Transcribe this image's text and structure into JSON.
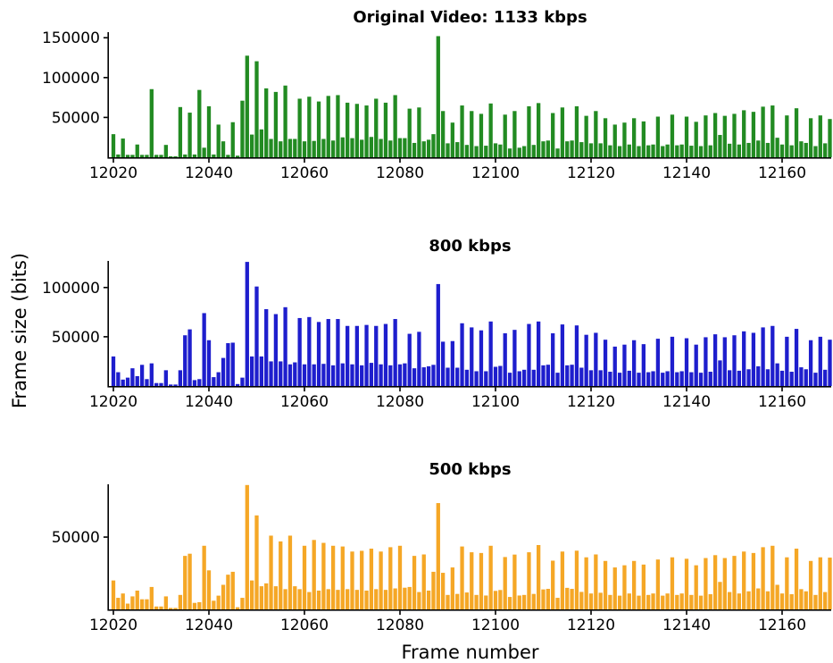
{
  "figure": {
    "xlabel": "Frame number",
    "ylabel": "Frame size (bits)",
    "background": "#ffffff",
    "text_color": "#000000"
  },
  "chart_data": [
    {
      "type": "bar",
      "title": "Original Video: 1133 kbps",
      "color": "#228B22",
      "ylim": [
        0,
        157000
      ],
      "yticks": [
        50000,
        100000,
        150000
      ],
      "xticks": [
        12020,
        12040,
        12060,
        12080,
        12100,
        12120,
        12140,
        12160
      ],
      "xlim": [
        12019,
        12170.5
      ],
      "grid": false,
      "legend": "none",
      "frame_start": 12020,
      "values": [
        29000,
        3500,
        23500,
        3000,
        3000,
        16000,
        3000,
        3000,
        85500,
        3000,
        3000,
        15500,
        1200,
        1200,
        63000,
        3500,
        56000,
        3500,
        84500,
        12000,
        64000,
        3500,
        41000,
        20000,
        3000,
        44000,
        2000,
        71000,
        127500,
        28500,
        120500,
        35000,
        86500,
        23000,
        82000,
        20000,
        90000,
        23000,
        23000,
        73500,
        20000,
        76000,
        20500,
        70000,
        23000,
        77000,
        21000,
        78000,
        25000,
        68500,
        24000,
        67000,
        22000,
        65000,
        25500,
        73500,
        23000,
        68500,
        21000,
        78000,
        24000,
        24000,
        61000,
        18000,
        62500,
        20000,
        22000,
        29000,
        152000,
        58000,
        17500,
        43500,
        19000,
        65000,
        15500,
        58000,
        14000,
        54500,
        14500,
        67500,
        17500,
        16000,
        53500,
        11000,
        58000,
        12000,
        14000,
        64000,
        15500,
        68000,
        20000,
        21000,
        55500,
        11000,
        62500,
        20000,
        21000,
        64000,
        19000,
        52000,
        17500,
        58000,
        17500,
        49000,
        15000,
        41000,
        14000,
        43500,
        16000,
        49000,
        14000,
        45000,
        15000,
        16000,
        51000,
        14000,
        16000,
        53500,
        15000,
        16000,
        51000,
        14500,
        44500,
        14000,
        52500,
        15000,
        55500,
        28000,
        52000,
        17000,
        54500,
        16000,
        59000,
        18000,
        57000,
        21000,
        63500,
        18000,
        65000,
        24500,
        16000,
        52500,
        15000,
        61500,
        20000,
        18000,
        49000,
        14000,
        52500,
        17500,
        48000
      ]
    },
    {
      "type": "bar",
      "title": "800 kbps",
      "color": "#1E1ECD",
      "ylim": [
        0,
        127000
      ],
      "yticks": [
        50000,
        100000
      ],
      "xticks": [
        12020,
        12040,
        12060,
        12080,
        12100,
        12120,
        12140,
        12160
      ],
      "xlim": [
        12019,
        12170.5
      ],
      "grid": false,
      "legend": "none",
      "frame_start": 12020,
      "values": [
        30000,
        14000,
        6500,
        8500,
        18000,
        10000,
        21500,
        7000,
        23000,
        3000,
        3000,
        16000,
        1500,
        1500,
        16000,
        51500,
        57500,
        6000,
        7000,
        74000,
        46500,
        9000,
        14000,
        28500,
        43500,
        44000,
        2000,
        8500,
        126000,
        30000,
        101000,
        30000,
        78000,
        25000,
        73000,
        25000,
        80000,
        22000,
        24000,
        69000,
        22000,
        70000,
        22000,
        65000,
        22500,
        68000,
        21000,
        68000,
        23000,
        61000,
        22000,
        61000,
        21000,
        62000,
        23500,
        61000,
        22000,
        63000,
        21000,
        68000,
        22000,
        23000,
        53000,
        18000,
        55000,
        19000,
        20000,
        21500,
        103500,
        45000,
        18600,
        45600,
        18600,
        63700,
        16500,
        59500,
        15000,
        56500,
        15000,
        65500,
        19500,
        20400,
        53500,
        13500,
        57000,
        15000,
        16500,
        63000,
        16500,
        65500,
        21000,
        21600,
        53500,
        13500,
        62500,
        21000,
        21600,
        61500,
        18600,
        52000,
        16000,
        54000,
        16000,
        47000,
        14500,
        40000,
        13500,
        42000,
        15500,
        46500,
        13500,
        42500,
        14000,
        15000,
        48000,
        13500,
        15000,
        50000,
        14000,
        15000,
        48500,
        14000,
        42000,
        13500,
        49500,
        14500,
        52500,
        26000,
        49500,
        16000,
        51500,
        15500,
        55500,
        17000,
        54000,
        20000,
        59500,
        17000,
        61000,
        23000,
        15500,
        50000,
        14500,
        58000,
        19000,
        17000,
        46500,
        13500,
        50000,
        16500,
        47000
      ]
    },
    {
      "type": "bar",
      "title": "500 kbps",
      "color": "#F5A726",
      "ylim": [
        0,
        86500
      ],
      "yticks": [
        50000
      ],
      "xticks": [
        12020,
        12040,
        12060,
        12080,
        12100,
        12120,
        12140,
        12160
      ],
      "xlim": [
        12019,
        12170.5
      ],
      "grid": false,
      "legend": "none",
      "frame_start": 12020,
      "values": [
        20000,
        8000,
        11000,
        4000,
        9000,
        13000,
        7000,
        7000,
        15500,
        2000,
        2000,
        9000,
        1000,
        1000,
        10000,
        37000,
        38500,
        4500,
        5000,
        44000,
        27000,
        6000,
        9500,
        17000,
        24000,
        26000,
        1500,
        8000,
        86000,
        20000,
        65000,
        16000,
        18000,
        51000,
        16000,
        47000,
        14000,
        51000,
        16000,
        14000,
        44000,
        12000,
        48000,
        13000,
        46000,
        14000,
        44000,
        13500,
        43500,
        14000,
        40000,
        13500,
        40500,
        13000,
        42000,
        14000,
        40000,
        13500,
        43000,
        14500,
        44000,
        15000,
        15500,
        37000,
        12000,
        38000,
        13000,
        26000,
        73500,
        25300,
        10000,
        29000,
        10700,
        43500,
        11700,
        39500,
        10000,
        39000,
        9600,
        44000,
        12800,
        13400,
        36200,
        8600,
        37900,
        9600,
        10000,
        39500,
        10700,
        44500,
        13800,
        14200,
        33700,
        8000,
        40000,
        14900,
        14200,
        40600,
        12100,
        36000,
        11000,
        38000,
        11500,
        33500,
        10000,
        29000,
        9500,
        30500,
        11000,
        33500,
        9500,
        31000,
        10000,
        11000,
        34500,
        9500,
        11000,
        36000,
        10000,
        11000,
        35000,
        10000,
        30500,
        9500,
        35500,
        10500,
        37500,
        19000,
        35500,
        12000,
        37000,
        11000,
        40000,
        12500,
        39000,
        14500,
        43000,
        12500,
        44000,
        17000,
        11000,
        36000,
        10500,
        42000,
        14000,
        12500,
        33500,
        10000,
        36000,
        12000,
        35800
      ]
    }
  ]
}
